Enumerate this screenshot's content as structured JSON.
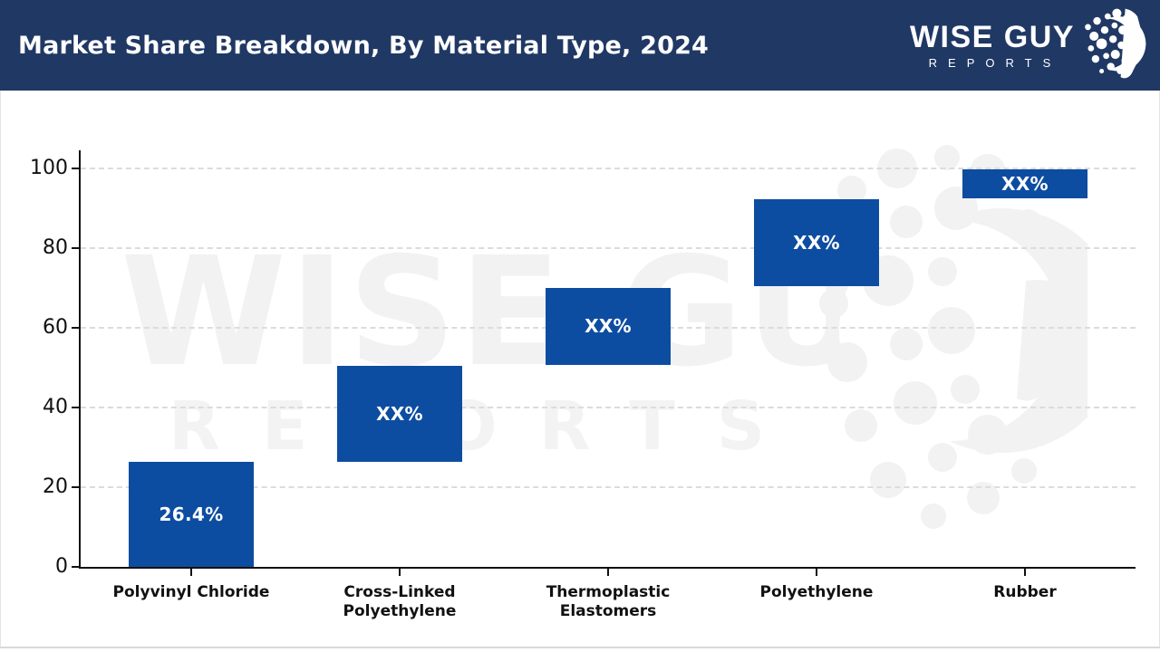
{
  "header": {
    "title": "Market Share Breakdown, By Material Type, 2024",
    "bg_color": "#203864",
    "logo": {
      "line1": "WISE GUY",
      "line2": "REPORTS"
    }
  },
  "watermark": {
    "line1": "WISE GUY",
    "line2": "REPORTS"
  },
  "chart_data": {
    "type": "bar",
    "subtype": "waterfall",
    "title": "Market Share Breakdown, By Material Type, 2024",
    "categories": [
      "Polyvinyl Chloride",
      "Cross-Linked Polyethylene",
      "Thermoplastic Elastomers",
      "Polyethylene",
      "Rubber"
    ],
    "series": [
      {
        "name": "Market Share",
        "segments": [
          {
            "category": "Polyvinyl Chloride",
            "start": 0,
            "end": 26.4,
            "label": "26.4%"
          },
          {
            "category": "Cross-Linked Polyethylene",
            "start": 26.4,
            "end": 50.5,
            "label": "XX%"
          },
          {
            "category": "Thermoplastic Elastomers",
            "start": 50.7,
            "end": 70.0,
            "label": "XX%"
          },
          {
            "category": "Polyethylene",
            "start": 70.5,
            "end": 92.3,
            "label": "XX%"
          },
          {
            "category": "Rubber",
            "start": 92.5,
            "end": 99.8,
            "label": "XX%"
          }
        ]
      }
    ],
    "xlabel": "",
    "ylabel": "",
    "ylim": [
      0,
      105
    ],
    "yticks": [
      0,
      20,
      40,
      60,
      80,
      100
    ],
    "grid": "horizontal-dashed",
    "legend": "none",
    "bar_color": "#0d4da1",
    "bar_label_color": "#ffffff",
    "axis_color": "#111111"
  }
}
